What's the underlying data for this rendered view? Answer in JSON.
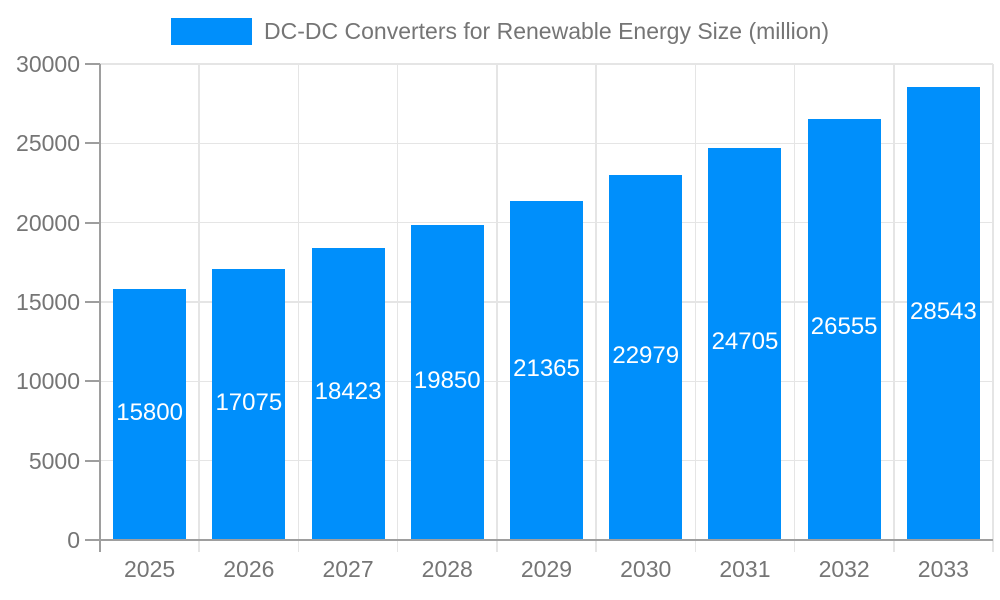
{
  "legend": {
    "swatch_color": "#008FFB"
  },
  "chart_data": {
    "type": "bar",
    "title": "DC-DC Converters for Renewable Energy Size (million)",
    "categories": [
      "2025",
      "2026",
      "2027",
      "2028",
      "2029",
      "2030",
      "2031",
      "2032",
      "2033"
    ],
    "series": [
      {
        "name": "DC-DC Converters for Renewable Energy Size (million)",
        "values": [
          15800,
          17075,
          18423,
          19850,
          21365,
          22979,
          24705,
          26555,
          28543
        ]
      }
    ],
    "value_labels": [
      "15800",
      "17075",
      "18423",
      "19850",
      "21365",
      "22979",
      "24705",
      "26555",
      "28543"
    ],
    "xlabel": "",
    "ylabel": "",
    "ylim": [
      0,
      30000
    ],
    "yticks": [
      0,
      5000,
      10000,
      15000,
      20000,
      25000,
      30000
    ],
    "grid": true,
    "legend_position": "top",
    "colors": {
      "bar": "#008FFB",
      "bar_value_text": "#ffffff",
      "axis_text": "#757575",
      "gridline": "#e5e5e5",
      "axis_line": "#9e9e9e"
    }
  }
}
